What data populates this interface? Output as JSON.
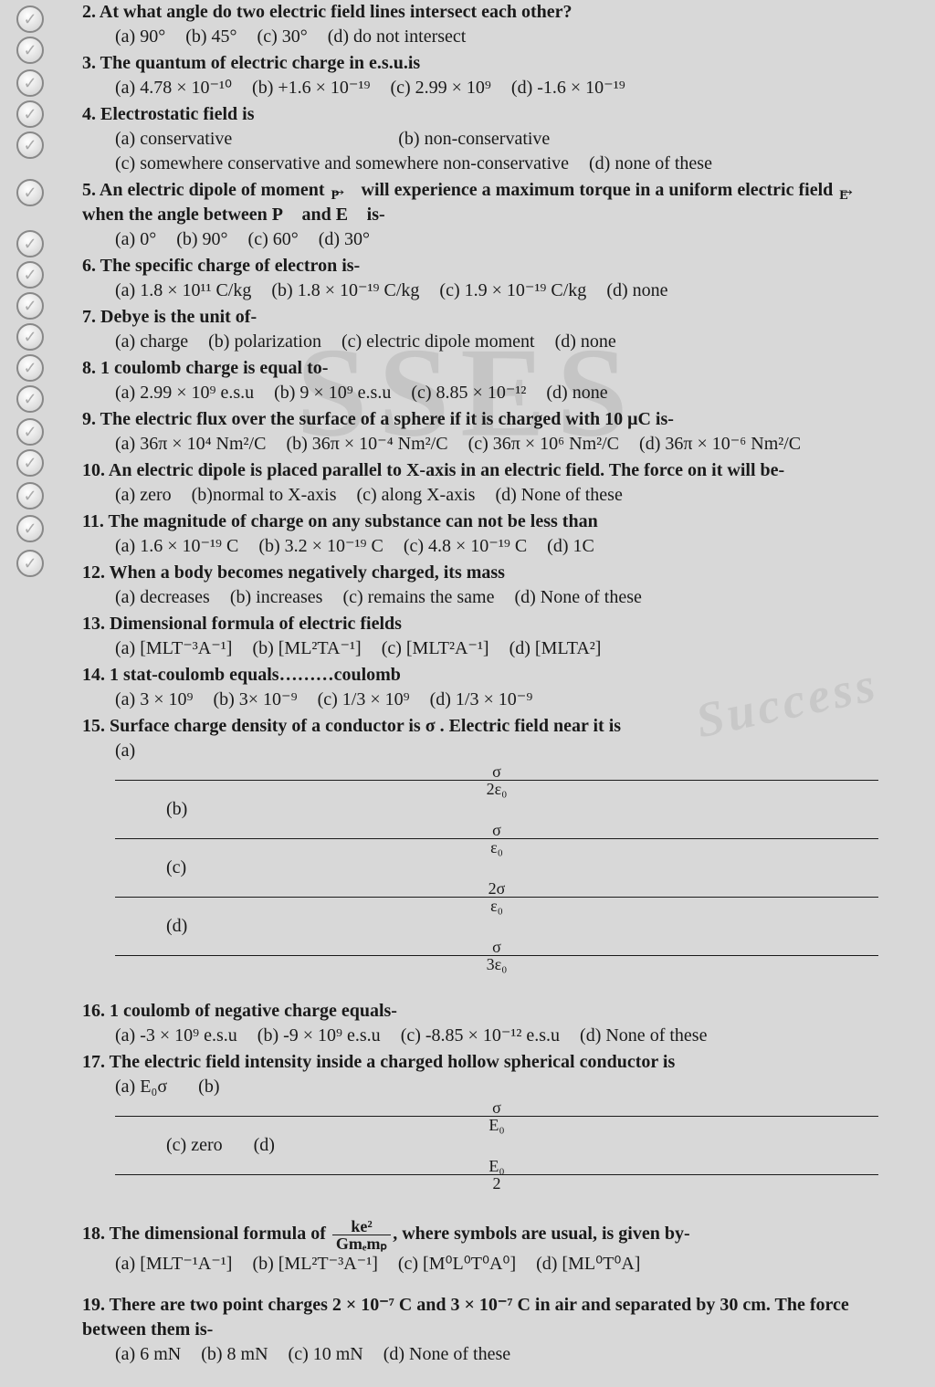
{
  "watermark_main": "SSES",
  "watermark_sub": "Success",
  "bullets": 17,
  "questions": [
    {
      "n": "2",
      "stem": "At what angle do two electric field lines intersect each other?",
      "opts": [
        "(a) 90°",
        "(b) 45°",
        "(c) 30°",
        "(d) do not intersect"
      ]
    },
    {
      "n": "3",
      "stem": "The quantum of electric charge in e.s.u.is",
      "opts": [
        "(a) 4.78 × 10⁻¹⁰",
        "(b) +1.6 × 10⁻¹⁹",
        "(c) 2.99 × 10⁹",
        "(d) -1.6 × 10⁻¹⁹"
      ]
    },
    {
      "n": "4",
      "stem": "Electrostatic field is",
      "opts": [
        "(a) conservative",
        "(b) non-conservative",
        "(c) somewhere conservative and somewhere non-conservative",
        "(d) none of these"
      ],
      "twoLine": true
    },
    {
      "n": "5",
      "stem_html": "An electric dipole of moment <span style='position:relative'>→<sub style='position:absolute;left:2px;top:8px'>P</sub></span>&nbsp;&nbsp; will experience a maximum torque in a uniform electric field <span style='position:relative'>→<sub style='position:absolute;left:2px;top:8px'>E</sub></span>&nbsp;&nbsp; when the angle between P⃗ and E⃗ is-",
      "opts": [
        "(a) 0°",
        "(b) 90°",
        "(c) 60°",
        "(d) 30°"
      ]
    },
    {
      "n": "6",
      "stem": "The specific charge of electron is-",
      "opts": [
        "(a) 1.8 × 10¹¹ C/kg",
        "(b) 1.8 × 10⁻¹⁹ C/kg",
        "(c) 1.9 × 10⁻¹⁹ C/kg",
        "(d) none"
      ]
    },
    {
      "n": "7",
      "stem": "Debye is the unit of-",
      "opts": [
        "(a) charge",
        "(b) polarization",
        "(c) electric dipole moment",
        "(d) none"
      ]
    },
    {
      "n": "8",
      "stem": "1 coulomb charge is equal to-",
      "opts": [
        "(a) 2.99 × 10⁹ e.s.u",
        "(b) 9 × 10⁹ e.s.u",
        "(c) 8.85 × 10⁻¹²",
        "(d) none"
      ]
    },
    {
      "n": "9",
      "stem": "The electric flux over the surface of a sphere if it is charged with 10 μC is-",
      "opts": [
        "(a) 36π × 10⁴ Nm²/C",
        "(b) 36π × 10⁻⁴ Nm²/C",
        "(c) 36π × 10⁶ Nm²/C",
        "(d) 36π × 10⁻⁶ Nm²/C"
      ]
    },
    {
      "n": "10",
      "stem": "An electric dipole is placed parallel to X-axis in an electric field. The force on it will be-",
      "opts": [
        "(a) zero",
        "(b)normal to X-axis",
        "(c) along X-axis",
        "(d) None of these"
      ]
    },
    {
      "n": "11",
      "stem": "The magnitude of charge on any substance can not be less than",
      "opts": [
        "(a) 1.6 × 10⁻¹⁹ C",
        "(b) 3.2 × 10⁻¹⁹ C",
        "(c) 4.8 × 10⁻¹⁹ C",
        "(d) 1C"
      ]
    },
    {
      "n": "12",
      "stem": "When a body becomes negatively charged, its mass",
      "opts": [
        "(a) decreases",
        "(b) increases",
        "(c) remains the same",
        "(d) None of these"
      ]
    },
    {
      "n": "13",
      "stem": "Dimensional formula of electric fields",
      "opts": [
        "(a) [MLT⁻³A⁻¹]",
        "(b) [ML²TA⁻¹]",
        "(c) [MLT²A⁻¹]",
        "(d) [MLTA²]"
      ]
    },
    {
      "n": "14",
      "stem": "1 stat-coulomb equals………coulomb",
      "opts": [
        "(a) 3 × 10⁹",
        "(b) 3× 10⁻⁹",
        "(c) 1/3 × 10⁹",
        "(d) 1/3 × 10⁻⁹"
      ]
    },
    {
      "n": "15",
      "stem": "Surface charge density of a conductor is σ . Electric field near it is",
      "opts_frac": [
        {
          "lbl": "(a)",
          "num": "σ",
          "den": "2ε₀"
        },
        {
          "lbl": "(b)",
          "num": "σ",
          "den": "ε₀"
        },
        {
          "lbl": "(c)",
          "num": "2σ",
          "den": "ε₀"
        },
        {
          "lbl": "(d)",
          "num": "σ",
          "den": "3ε₀"
        }
      ]
    },
    {
      "n": "16",
      "stem": "1 coulomb of negative charge equals-",
      "opts": [
        "(a) -3 × 10⁹ e.s.u",
        "(b) -9 × 10⁹ e.s.u",
        "(c) -8.85 × 10⁻¹² e.s.u",
        "(d) None of these"
      ]
    },
    {
      "n": "17",
      "stem": "The electric field intensity inside a charged hollow spherical conductor is",
      "opts_mixed": [
        {
          "html": "(a) E₀σ"
        },
        {
          "lbl": "(b)",
          "num": "σ",
          "den": "E₀",
          "frac": true
        },
        {
          "html": "(c) zero"
        },
        {
          "lbl": "(d)",
          "num": "E₀",
          "den": "2",
          "frac": true
        }
      ]
    },
    {
      "n": "18",
      "stem_frac": {
        "pre": "The dimensional formula of ",
        "num": "ke²",
        "den": "Gmₑmₚ",
        "post": ", where symbols are usual, is given by-"
      },
      "opts": [
        "(a) [MLT⁻¹A⁻¹]",
        "(b) [ML²T⁻³A⁻¹]",
        "(c) [M⁰L⁰T⁰A⁰]",
        "(d) [ML⁰T⁰A]"
      ]
    },
    {
      "n": "19",
      "stem": "There are two point charges 2 × 10⁻⁷ C and 3 × 10⁻⁷ C in air and separated by 30 cm. The force between them is-",
      "opts": [
        "(a) 6 mN",
        "(b) 8 mN",
        "(c) 10 mN",
        "(d) None of these"
      ],
      "gap": true
    }
  ]
}
